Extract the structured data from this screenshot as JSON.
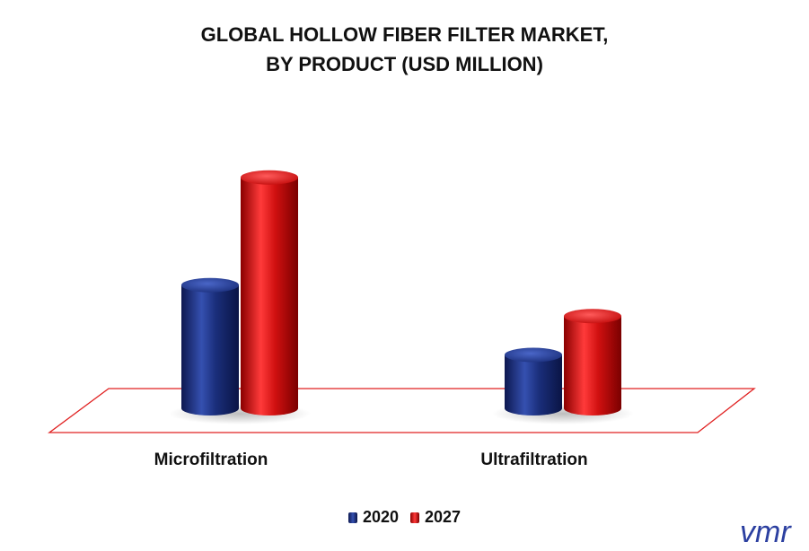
{
  "chart_data": {
    "type": "bar",
    "title": "GLOBAL HOLLOW FIBER FILTER MARKET,",
    "subtitle": "BY PRODUCT (USD MILLION)",
    "categories": [
      "Microfiltration",
      "Ultrafiltration"
    ],
    "series": [
      {
        "name": "2020",
        "values": [
          143,
          62
        ],
        "color": "#1a2e7a"
      },
      {
        "name": "2027",
        "values": [
          268,
          107
        ],
        "color": "#d01010"
      }
    ],
    "ylim": [
      0,
      300
    ],
    "grid": false,
    "legend": "bottom-center",
    "floor_color": "#e02020"
  },
  "logo": {
    "text": "vmr",
    "color": "#2b3fa0"
  }
}
